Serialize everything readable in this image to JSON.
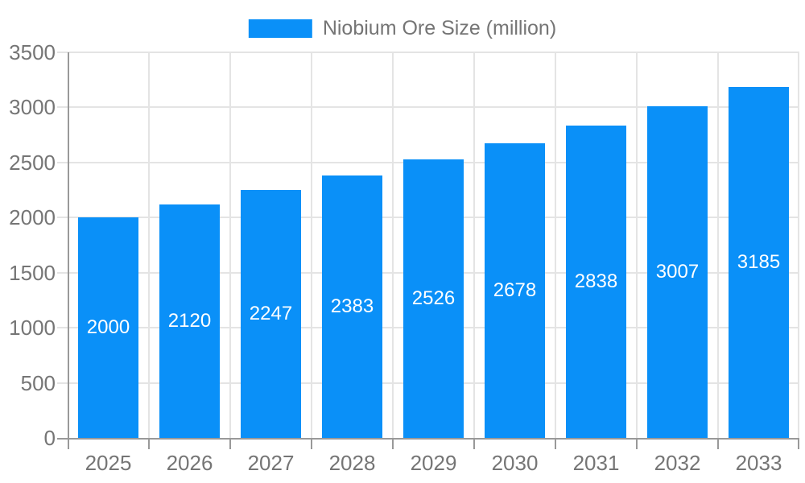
{
  "chart_data": {
    "type": "bar",
    "title": "",
    "xlabel": "",
    "ylabel": "",
    "categories": [
      "2025",
      "2026",
      "2027",
      "2028",
      "2029",
      "2030",
      "2031",
      "2032",
      "2033"
    ],
    "series": [
      {
        "name": "Niobium Ore Size (million)",
        "values": [
          2000,
          2120,
          2247,
          2383,
          2526,
          2678,
          2838,
          3007,
          3185
        ]
      }
    ],
    "ylim": [
      0,
      3500
    ],
    "yticks": [
      0,
      500,
      1000,
      1500,
      2000,
      2500,
      3000,
      3500
    ],
    "grid": true,
    "legend_position": "top-center",
    "value_labels": "inside-center",
    "bar_band_fraction": 0.75,
    "colors": {
      "bar": "#0a90f8",
      "grid": "#e4e4e4",
      "axis": "#999999",
      "tick_text": "#757575",
      "value_text": "#ffffff",
      "background": "#ffffff"
    }
  }
}
